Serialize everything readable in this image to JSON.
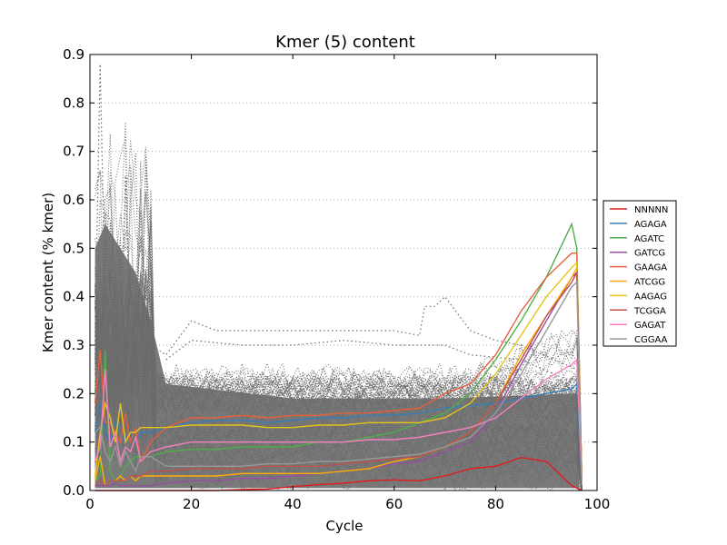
{
  "chart_data": {
    "type": "line",
    "title": "Kmer (5) content",
    "xlabel": "Cycle",
    "ylabel": "Kmer content (% kmer)",
    "xlim": [
      0,
      100
    ],
    "ylim": [
      0,
      0.9
    ],
    "xticks": [
      "0",
      "20",
      "40",
      "60",
      "80",
      "100"
    ],
    "yticks": [
      "0.0",
      "0.1",
      "0.2",
      "0.3",
      "0.4",
      "0.5",
      "0.6",
      "0.7",
      "0.8",
      "0.9"
    ],
    "grid": "horizontal dotted",
    "legend_position": "right, outside plot",
    "background_note": "Thousands of grey dotted lines representing all other 5-mers, dense band 0.0-0.2 across cycles, spikes up to ~0.88 in cycles 1-12",
    "x": [
      1,
      2,
      3,
      4,
      5,
      6,
      7,
      8,
      9,
      10,
      12,
      15,
      20,
      25,
      30,
      35,
      40,
      45,
      50,
      55,
      60,
      65,
      70,
      75,
      80,
      85,
      90,
      95,
      96,
      97
    ],
    "series": [
      {
        "name": "NNNNN",
        "color": "#e41a1c",
        "values": [
          0,
          0,
          0,
          0,
          0,
          0,
          0,
          0,
          0,
          0,
          0,
          0,
          0,
          0,
          0.002,
          0.003,
          0.008,
          0.012,
          0.015,
          0.02,
          0.022,
          0.02,
          0.03,
          0.045,
          0.05,
          0.068,
          0.06,
          0.01,
          0.005,
          0
        ]
      },
      {
        "name": "AGAGA",
        "color": "#377eb8",
        "values": [
          0.12,
          0.18,
          0.12,
          0.1,
          0.14,
          0.12,
          0.1,
          0.12,
          0.1,
          0.12,
          0.12,
          0.13,
          0.14,
          0.145,
          0.145,
          0.14,
          0.145,
          0.15,
          0.15,
          0.155,
          0.155,
          0.16,
          0.17,
          0.175,
          0.18,
          0.19,
          0.2,
          0.21,
          0.22,
          0.02
        ]
      },
      {
        "name": "AGATC",
        "color": "#4daf4a",
        "values": [
          0.02,
          0.03,
          0.29,
          0.04,
          0.02,
          0.03,
          0.05,
          0.06,
          0.07,
          0.07,
          0.07,
          0.08,
          0.085,
          0.085,
          0.09,
          0.09,
          0.09,
          0.1,
          0.1,
          0.11,
          0.12,
          0.14,
          0.16,
          0.2,
          0.27,
          0.35,
          0.44,
          0.55,
          0.5,
          0.02
        ]
      },
      {
        "name": "GATCG",
        "color": "#984ea3",
        "values": [
          0.01,
          0.01,
          0.01,
          0.01,
          0.015,
          0.01,
          0.01,
          0.01,
          0.01,
          0.01,
          0.01,
          0.015,
          0.02,
          0.02,
          0.025,
          0.025,
          0.03,
          0.035,
          0.04,
          0.045,
          0.055,
          0.06,
          0.08,
          0.1,
          0.16,
          0.26,
          0.35,
          0.44,
          0.45,
          0.02
        ]
      },
      {
        "name": "GAAGA",
        "color": "#e5603b",
        "values": [
          0.18,
          0.29,
          0.14,
          0.14,
          0.12,
          0.1,
          0.16,
          0.1,
          0.13,
          0.06,
          0.1,
          0.13,
          0.15,
          0.15,
          0.155,
          0.15,
          0.155,
          0.155,
          0.16,
          0.16,
          0.165,
          0.17,
          0.2,
          0.22,
          0.28,
          0.37,
          0.44,
          0.49,
          0.49,
          0.02
        ]
      },
      {
        "name": "ATCGG",
        "color": "#ffae00",
        "values": [
          0.02,
          0.07,
          0.01,
          0.02,
          0.02,
          0.03,
          0.02,
          0.03,
          0.02,
          0.03,
          0.03,
          0.03,
          0.03,
          0.03,
          0.035,
          0.035,
          0.035,
          0.035,
          0.04,
          0.045,
          0.06,
          0.07,
          0.09,
          0.12,
          0.18,
          0.28,
          0.36,
          0.44,
          0.46,
          0.02
        ]
      },
      {
        "name": "AAGAG",
        "color": "#e6c419",
        "values": [
          0.03,
          0.12,
          0.18,
          0.15,
          0.1,
          0.18,
          0.1,
          0.12,
          0.12,
          0.13,
          0.13,
          0.13,
          0.135,
          0.135,
          0.135,
          0.13,
          0.13,
          0.135,
          0.135,
          0.14,
          0.14,
          0.14,
          0.15,
          0.18,
          0.24,
          0.32,
          0.4,
          0.46,
          0.47,
          0.02
        ]
      },
      {
        "name": "TCGGA",
        "color": "#c0504d",
        "values": [
          0.01,
          0.02,
          0.01,
          0.02,
          0.02,
          0.02,
          0.02,
          0.03,
          0.03,
          0.03,
          0.04,
          0.04,
          0.045,
          0.045,
          0.045,
          0.05,
          0.05,
          0.05,
          0.055,
          0.06,
          0.065,
          0.07,
          0.09,
          0.12,
          0.18,
          0.27,
          0.36,
          0.43,
          0.45,
          0.02
        ]
      },
      {
        "name": "GAGAT",
        "color": "#f781bf",
        "values": [
          0.06,
          0.09,
          0.25,
          0.09,
          0.12,
          0.06,
          0.09,
          0.08,
          0.11,
          0.06,
          0.08,
          0.09,
          0.1,
          0.1,
          0.1,
          0.1,
          0.1,
          0.1,
          0.1,
          0.105,
          0.105,
          0.11,
          0.12,
          0.13,
          0.15,
          0.19,
          0.23,
          0.26,
          0.27,
          0.02
        ]
      },
      {
        "name": "CGGAA",
        "color": "#999999",
        "values": [
          0.12,
          0.13,
          0.08,
          0.06,
          0.09,
          0.05,
          0.08,
          0.06,
          0.04,
          0.07,
          0.07,
          0.05,
          0.05,
          0.05,
          0.05,
          0.055,
          0.055,
          0.06,
          0.06,
          0.065,
          0.07,
          0.075,
          0.09,
          0.11,
          0.16,
          0.24,
          0.33,
          0.42,
          0.43,
          0.02
        ]
      }
    ]
  }
}
